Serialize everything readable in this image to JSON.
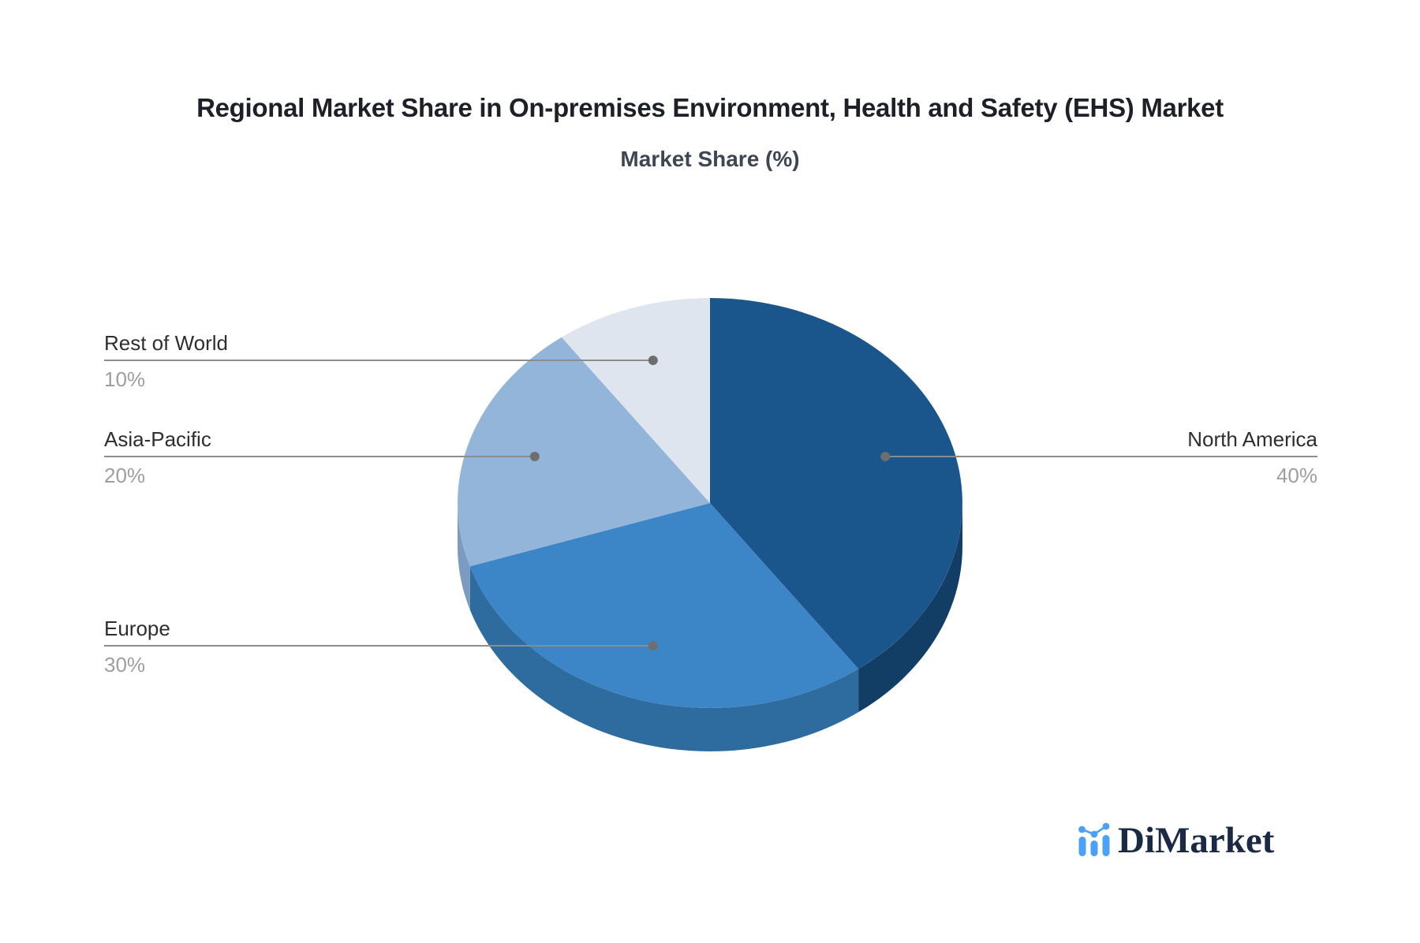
{
  "title": "Regional Market Share in On-premises Environment, Health and Safety (EHS) Market",
  "subtitle": "Market Share (%)",
  "brand": {
    "name": "DiMarket",
    "icon": "bar-line-chart-icon",
    "icon_color": "#4BA0F8",
    "text_color": "#1B2A44"
  },
  "chart_data": {
    "type": "pie",
    "style": "3d",
    "title": "Regional Market Share in On-premises Environment, Health and Safety (EHS) Market",
    "subtitle": "Market Share (%)",
    "unit": "%",
    "start_angle_deg": 0,
    "direction": "clockwise",
    "legend": "none",
    "slices": [
      {
        "label": "North America",
        "value": 40,
        "pct_label": "40%",
        "color": "#1A558B",
        "side_color": "#123E66",
        "label_side": "right"
      },
      {
        "label": "Europe",
        "value": 30,
        "pct_label": "30%",
        "color": "#3C86C7",
        "side_color": "#2E6B9E",
        "label_side": "left"
      },
      {
        "label": "Asia-Pacific",
        "value": 20,
        "pct_label": "20%",
        "color": "#93B5DA",
        "side_color": "#7C9BC0",
        "label_side": "left"
      },
      {
        "label": "Rest of World",
        "value": 10,
        "pct_label": "10%",
        "color": "#DFE5EE",
        "side_color": null,
        "label_side": "left"
      }
    ],
    "leader_line_color": "#8C8C8C",
    "leader_dot_color": "#6E6E6E",
    "label_color": "#2E2E2E",
    "pct_label_color": "#9E9E9E"
  }
}
